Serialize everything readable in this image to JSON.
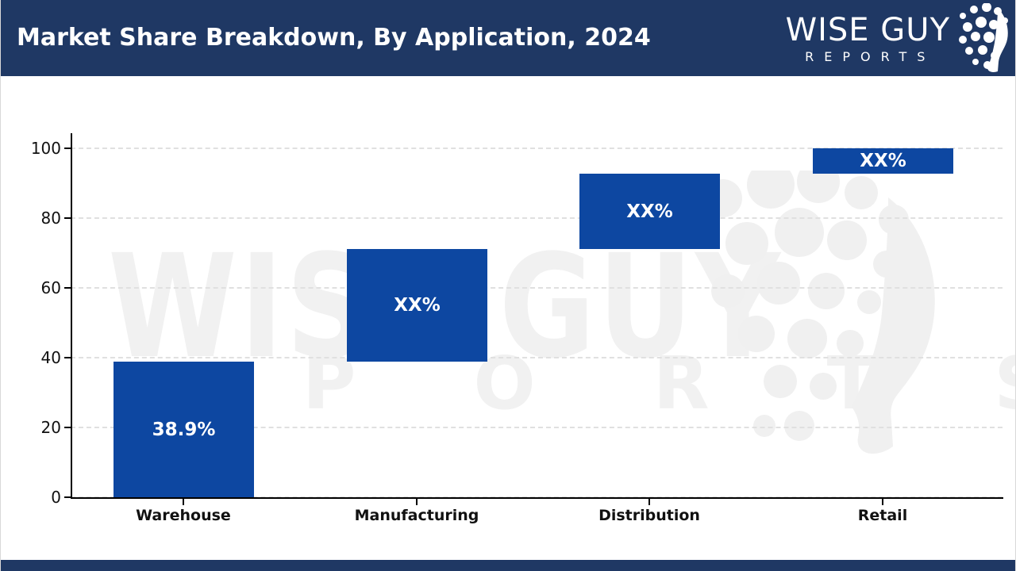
{
  "header": {
    "title": "Market Share Breakdown, By Application, 2024",
    "logo": {
      "name": "WISE GUY",
      "tagline": "REPORTS"
    }
  },
  "watermark": {
    "line1": "WISE GUY",
    "line2": "P O R T S"
  },
  "colors": {
    "header_bg": "#1f3864",
    "bar_blue": "#0d47a1",
    "watermark_gray": "#f1f1f1",
    "grid_gray": "#e0e0e0"
  },
  "chart_data": {
    "type": "bar",
    "variant": "waterfall",
    "title": "Market Share Breakdown, By Application, 2024",
    "categories": [
      "Warehouse",
      "Manufacturing",
      "Distribution",
      "Retail"
    ],
    "segments": [
      {
        "category": "Warehouse",
        "start": 0,
        "end": 38.9,
        "value_label": "38.9%"
      },
      {
        "category": "Manufacturing",
        "start": 38.9,
        "end": 71.1,
        "value_label": "XX%"
      },
      {
        "category": "Distribution",
        "start": 71.1,
        "end": 92.7,
        "value_label": "XX%"
      },
      {
        "category": "Retail",
        "start": 92.7,
        "end": 100.0,
        "value_label": "XX%"
      }
    ],
    "y_axis": {
      "ticks": [
        0,
        20,
        40,
        60,
        80,
        100
      ],
      "tick_labels_top_to_bottom": [
        "100",
        "80",
        "60",
        "40",
        "20",
        "0"
      ],
      "range": [
        0,
        105
      ]
    },
    "x_axis": {
      "label": ""
    },
    "grid": "horizontal-dashed",
    "legend": "none",
    "bar_color": "#0d47a1"
  }
}
